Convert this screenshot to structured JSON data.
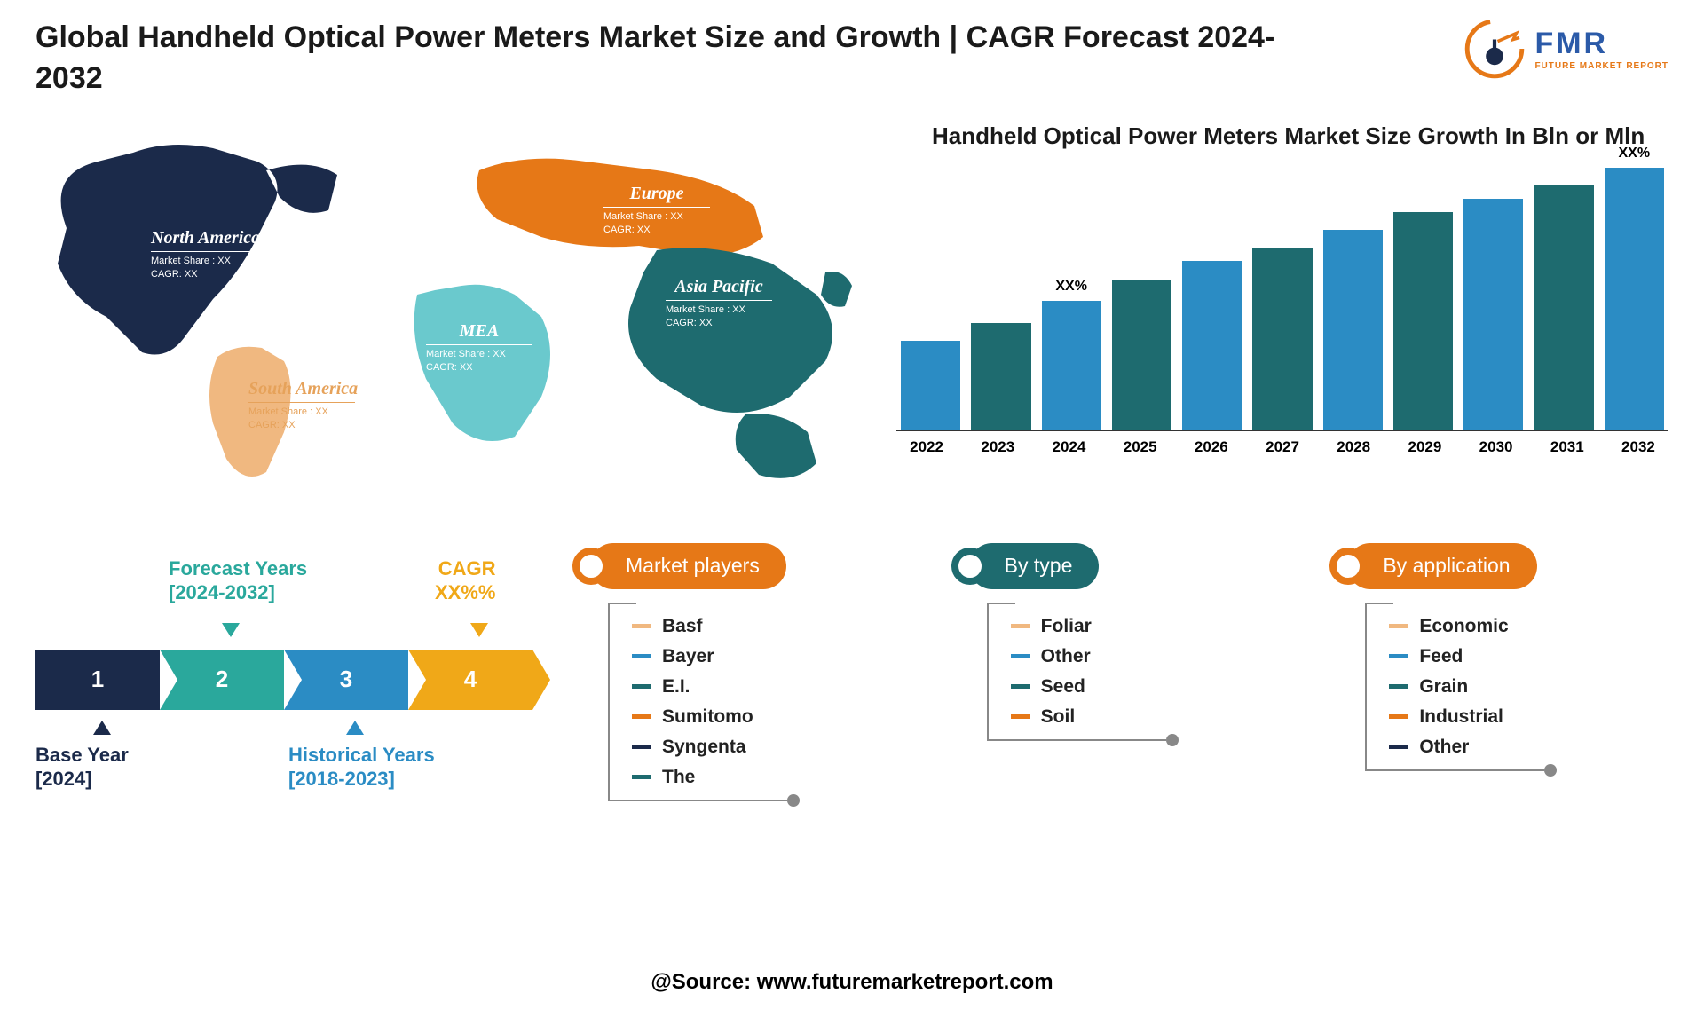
{
  "title": "Global Handheld Optical Power Meters Market Size and Growth | CAGR Forecast 2024-2032",
  "logo": {
    "main": "FMR",
    "sub": "FUTURE MARKET REPORT",
    "icon_color": "#e67817",
    "text_color": "#2b5aa8"
  },
  "source": "@Source: www.futuremarketreport.com",
  "map": {
    "regions": [
      {
        "name": "North America",
        "share": "Market Share : XX",
        "cagr": "CAGR: XX",
        "color": "#1b2a4a"
      },
      {
        "name": "South America",
        "share": "Market Share : XX",
        "cagr": "CAGR: XX",
        "color": "#f0b880"
      },
      {
        "name": "Europe",
        "share": "Market Share : XX",
        "cagr": "CAGR: XX",
        "color": "#e67817"
      },
      {
        "name": "MEA",
        "share": "Market Share : XX",
        "cagr": "CAGR: XX",
        "color": "#6ac9cd"
      },
      {
        "name": "Asia Pacific",
        "share": "Market Share : XX",
        "cagr": "CAGR: XX",
        "color": "#1e6b6f"
      }
    ]
  },
  "chart": {
    "title": "Handheld Optical Power Meters Market Size Growth In Bln or Mln",
    "type": "bar",
    "categories": [
      "2022",
      "2023",
      "2024",
      "2025",
      "2026",
      "2027",
      "2028",
      "2029",
      "2030",
      "2031",
      "2032"
    ],
    "values": [
      100,
      120,
      145,
      168,
      190,
      205,
      225,
      245,
      260,
      275,
      295
    ],
    "colors": [
      "#2b8cc4",
      "#1e6b6f",
      "#2b8cc4",
      "#1e6b6f",
      "#2b8cc4",
      "#1e6b6f",
      "#2b8cc4",
      "#1e6b6f",
      "#2b8cc4",
      "#1e6b6f",
      "#2b8cc4"
    ],
    "ymax": 300,
    "callouts": [
      {
        "index": 2,
        "text": "XX%"
      },
      {
        "index": 10,
        "text": "XX%"
      }
    ],
    "font_size_axis": 17,
    "font_size_title": 26
  },
  "timeline": {
    "steps": [
      {
        "num": "1",
        "color": "#1b2a4a"
      },
      {
        "num": "2",
        "color": "#2aa89c"
      },
      {
        "num": "3",
        "color": "#2b8cc4"
      },
      {
        "num": "4",
        "color": "#f0a818"
      }
    ],
    "labels": {
      "base": {
        "text": "Base Year",
        "sub": "[2024]",
        "color": "#1b2a4a"
      },
      "forecast": {
        "text": "Forecast Years",
        "sub": "[2024-2032]",
        "color": "#2aa89c"
      },
      "historical": {
        "text": "Historical Years",
        "sub": "[2018-2023]",
        "color": "#2b8cc4"
      },
      "cagr": {
        "text": "CAGR",
        "sub": "XX%%",
        "color": "#f0a818"
      }
    }
  },
  "categories": [
    {
      "title": "Market players",
      "header_color": "#e67817",
      "items": [
        {
          "text": "Basf",
          "dash": "#f0b880"
        },
        {
          "text": "Bayer",
          "dash": "#2b8cc4"
        },
        {
          "text": "E.I.",
          "dash": "#1e6b6f"
        },
        {
          "text": "Sumitomo",
          "dash": "#e67817"
        },
        {
          "text": "Syngenta",
          "dash": "#1b2a4a"
        },
        {
          "text": "The",
          "dash": "#1e6b6f"
        }
      ]
    },
    {
      "title": "By type",
      "header_color": "#1e6b6f",
      "items": [
        {
          "text": "Foliar",
          "dash": "#f0b880"
        },
        {
          "text": "Other",
          "dash": "#2b8cc4"
        },
        {
          "text": "Seed",
          "dash": "#1e6b6f"
        },
        {
          "text": "Soil",
          "dash": "#e67817"
        }
      ]
    },
    {
      "title": "By application",
      "header_color": "#e67817",
      "items": [
        {
          "text": "Economic",
          "dash": "#f0b880"
        },
        {
          "text": "Feed",
          "dash": "#2b8cc4"
        },
        {
          "text": "Grain",
          "dash": "#1e6b6f"
        },
        {
          "text": "Industrial",
          "dash": "#e67817"
        },
        {
          "text": "Other",
          "dash": "#1b2a4a"
        }
      ]
    }
  ]
}
